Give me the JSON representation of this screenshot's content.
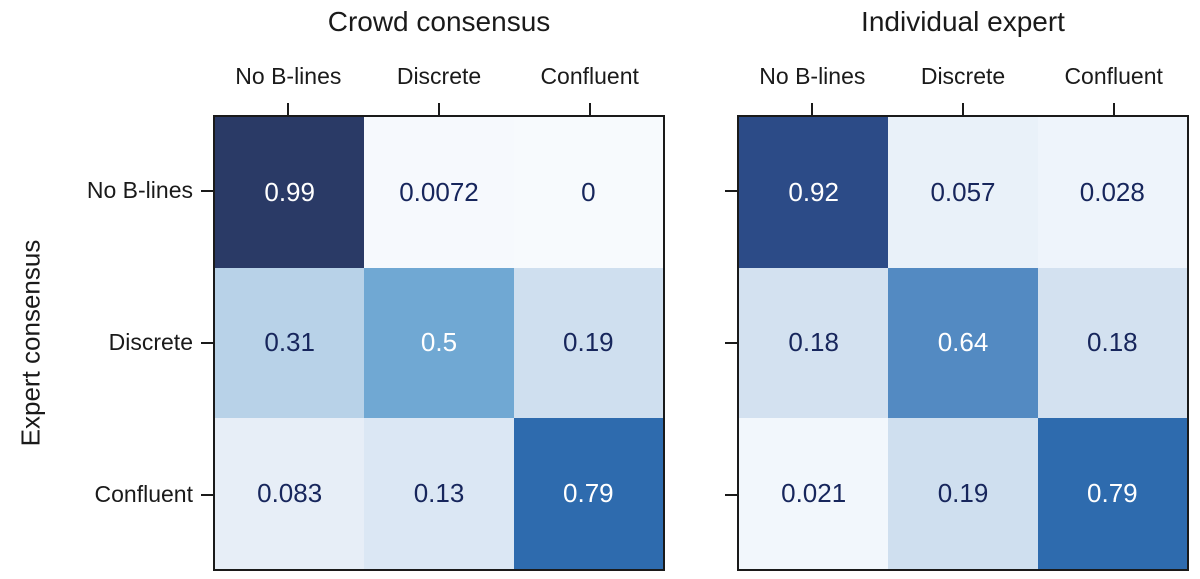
{
  "figure": {
    "ylabel": "Expert consensus",
    "background": "#ffffff",
    "frame_color": "#1a1a1a",
    "label_color": "#1a1a1a",
    "value_text_dark": "#17265c",
    "value_text_light": "#ffffff"
  },
  "chart_data": [
    {
      "type": "heatmap",
      "title": "Crowd consensus",
      "x_categories": [
        "No B-lines",
        "Discrete",
        "Confluent"
      ],
      "y_categories": [
        "No B-lines",
        "Discrete",
        "Confluent"
      ],
      "ylabel": "Expert consensus",
      "colormap": "Blues",
      "value_range": [
        0,
        1
      ],
      "legend": "none",
      "values": [
        [
          0.99,
          0.0072,
          0
        ],
        [
          0.31,
          0.5,
          0.19
        ],
        [
          0.083,
          0.13,
          0.79
        ]
      ],
      "cell_labels": [
        [
          "0.99",
          "0.0072",
          "0"
        ],
        [
          "0.31",
          "0.5",
          "0.19"
        ],
        [
          "0.083",
          "0.13",
          "0.79"
        ]
      ],
      "cell_colors": [
        [
          "#2a3a66",
          "#f6f9fd",
          "#f7fafd"
        ],
        [
          "#b8d2e8",
          "#70a8d3",
          "#cfdfef"
        ],
        [
          "#e7eef7",
          "#dbe7f4",
          "#2e6bae"
        ]
      ],
      "text_colors": [
        [
          "#ffffff",
          "#17265c",
          "#17265c"
        ],
        [
          "#17265c",
          "#ffffff",
          "#17265c"
        ],
        [
          "#17265c",
          "#17265c",
          "#ffffff"
        ]
      ]
    },
    {
      "type": "heatmap",
      "title": "Individual expert",
      "x_categories": [
        "No B-lines",
        "Discrete",
        "Confluent"
      ],
      "y_categories": [
        "No B-lines",
        "Discrete",
        "Confluent"
      ],
      "ylabel": "Expert consensus",
      "colormap": "Blues",
      "value_range": [
        0,
        1
      ],
      "legend": "none",
      "values": [
        [
          0.92,
          0.057,
          0.028
        ],
        [
          0.18,
          0.64,
          0.18
        ],
        [
          0.021,
          0.19,
          0.79
        ]
      ],
      "cell_labels": [
        [
          "0.92",
          "0.057",
          "0.028"
        ],
        [
          "0.18",
          "0.64",
          "0.18"
        ],
        [
          "0.021",
          "0.19",
          "0.79"
        ]
      ],
      "cell_colors": [
        [
          "#2c4b87",
          "#e9f1f9",
          "#eef4fb"
        ],
        [
          "#d3e1f0",
          "#538ac2",
          "#d3e1f0"
        ],
        [
          "#f2f7fc",
          "#cfdfef",
          "#2e6bae"
        ]
      ],
      "text_colors": [
        [
          "#ffffff",
          "#17265c",
          "#17265c"
        ],
        [
          "#17265c",
          "#ffffff",
          "#17265c"
        ],
        [
          "#17265c",
          "#17265c",
          "#ffffff"
        ]
      ]
    }
  ]
}
